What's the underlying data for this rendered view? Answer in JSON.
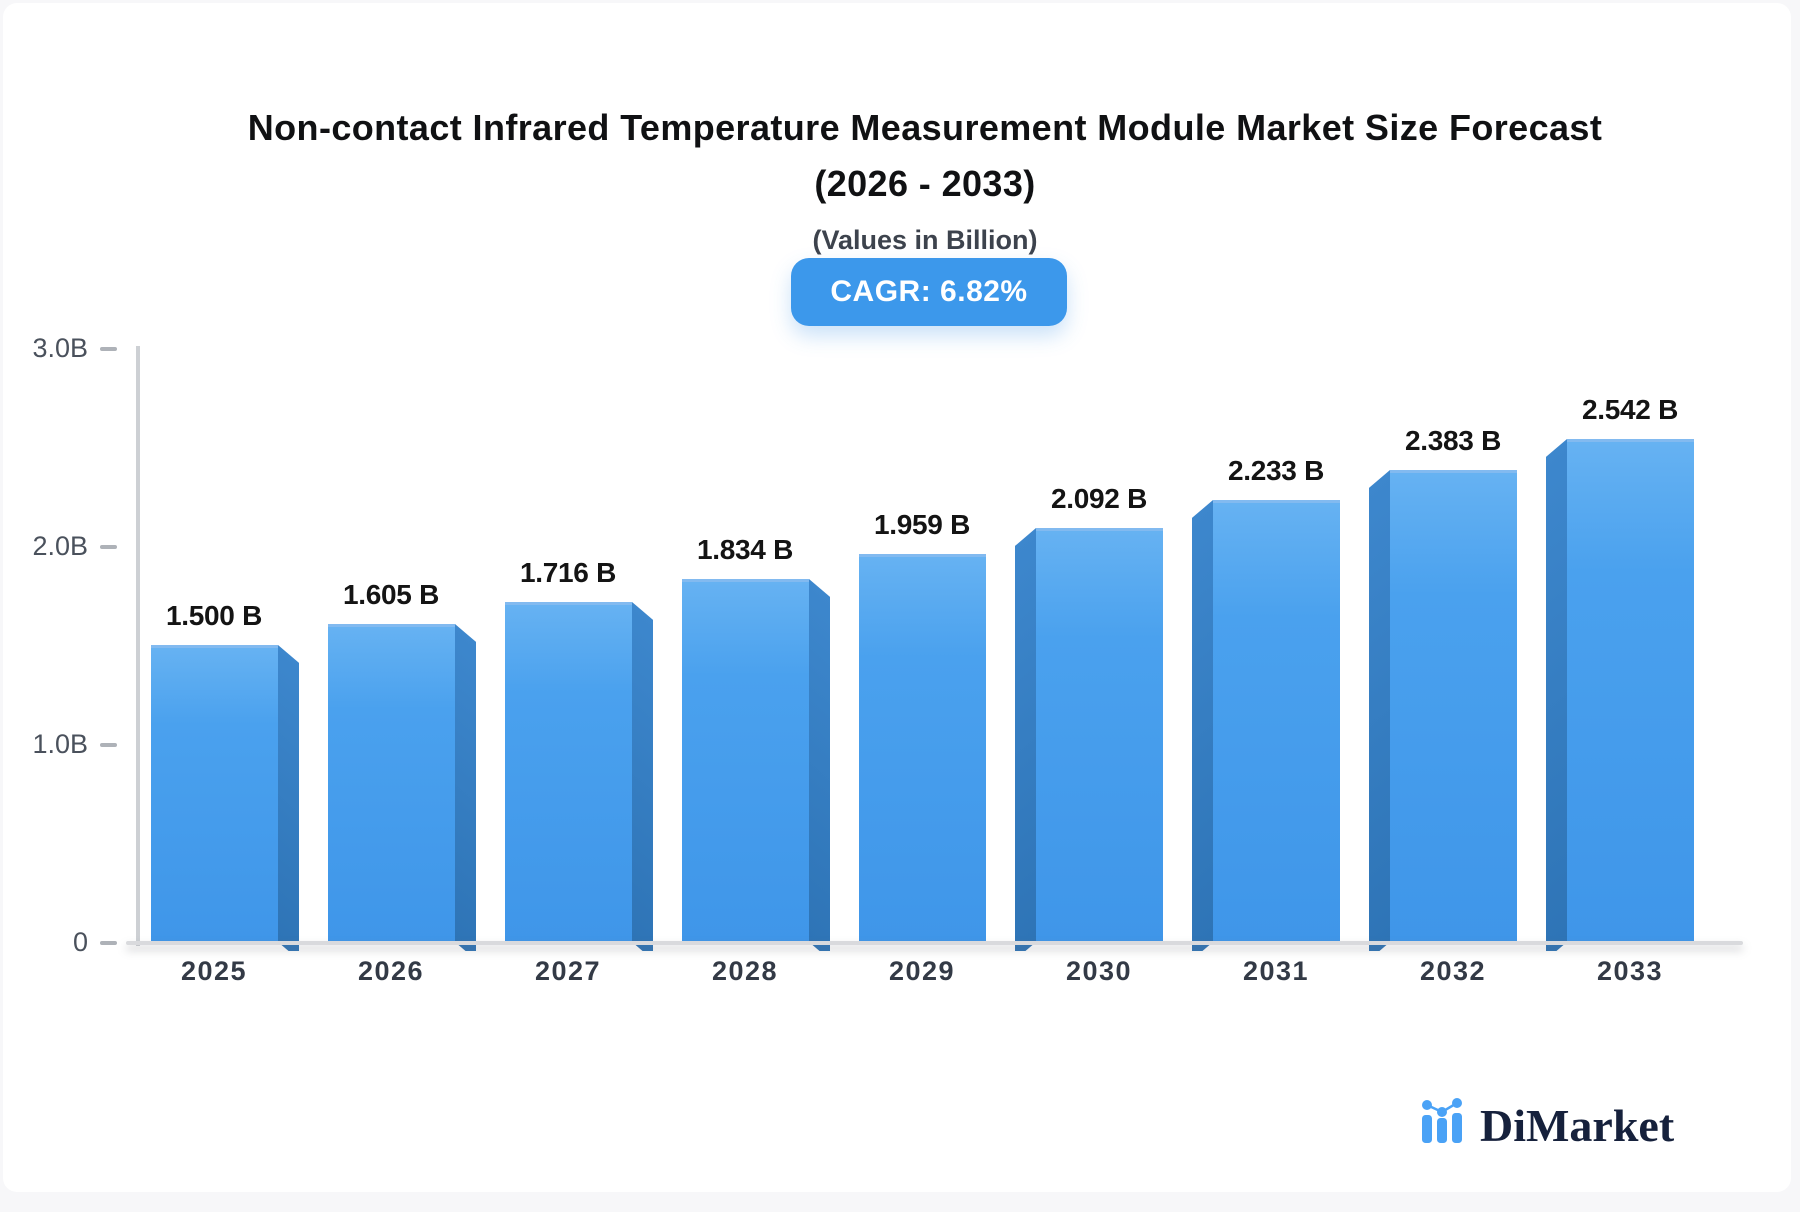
{
  "header": {
    "title_line1": "Non-contact Infrared Temperature Measurement Module Market Size Forecast",
    "title_line2": "(2026 - 2033)",
    "subtitle": "(Values in Billion)",
    "cagr_badge": "CAGR: 6.82%"
  },
  "chart_data": {
    "type": "bar",
    "title": "Non-contact Infrared Temperature Measurement Module Market Size Forecast (2026 - 2033)",
    "subtitle": "(Values in Billion)",
    "annotation": "CAGR: 6.82%",
    "categories": [
      "2025",
      "2026",
      "2027",
      "2028",
      "2029",
      "2030",
      "2031",
      "2032",
      "2033"
    ],
    "values": [
      1.5,
      1.605,
      1.716,
      1.834,
      1.959,
      2.092,
      2.233,
      2.383,
      2.542
    ],
    "value_labels": [
      "1.500 B",
      "1.605 B",
      "1.716 B",
      "1.834 B",
      "1.959 B",
      "2.092 B",
      "2.233 B",
      "2.383 B",
      "2.542 B"
    ],
    "xlabel": "",
    "ylabel": "",
    "ylim": [
      0,
      3.0
    ],
    "yticks": [
      {
        "label": "3.0B",
        "value": 3.0
      },
      {
        "label": "2.0B",
        "value": 2.0
      },
      {
        "label": "1.0B",
        "value": 1.0
      },
      {
        "label": "0",
        "value": 0
      }
    ],
    "grid": false,
    "legend": false,
    "bar_color": "#47A0EE",
    "bar_side_color": "#2F7DC2"
  },
  "footer": {
    "brand": "DiMarket"
  },
  "colors": {
    "badge_blue": "#3C98EB",
    "logo_navy": "#16213C",
    "logo_blue": "#4AA2F6"
  }
}
